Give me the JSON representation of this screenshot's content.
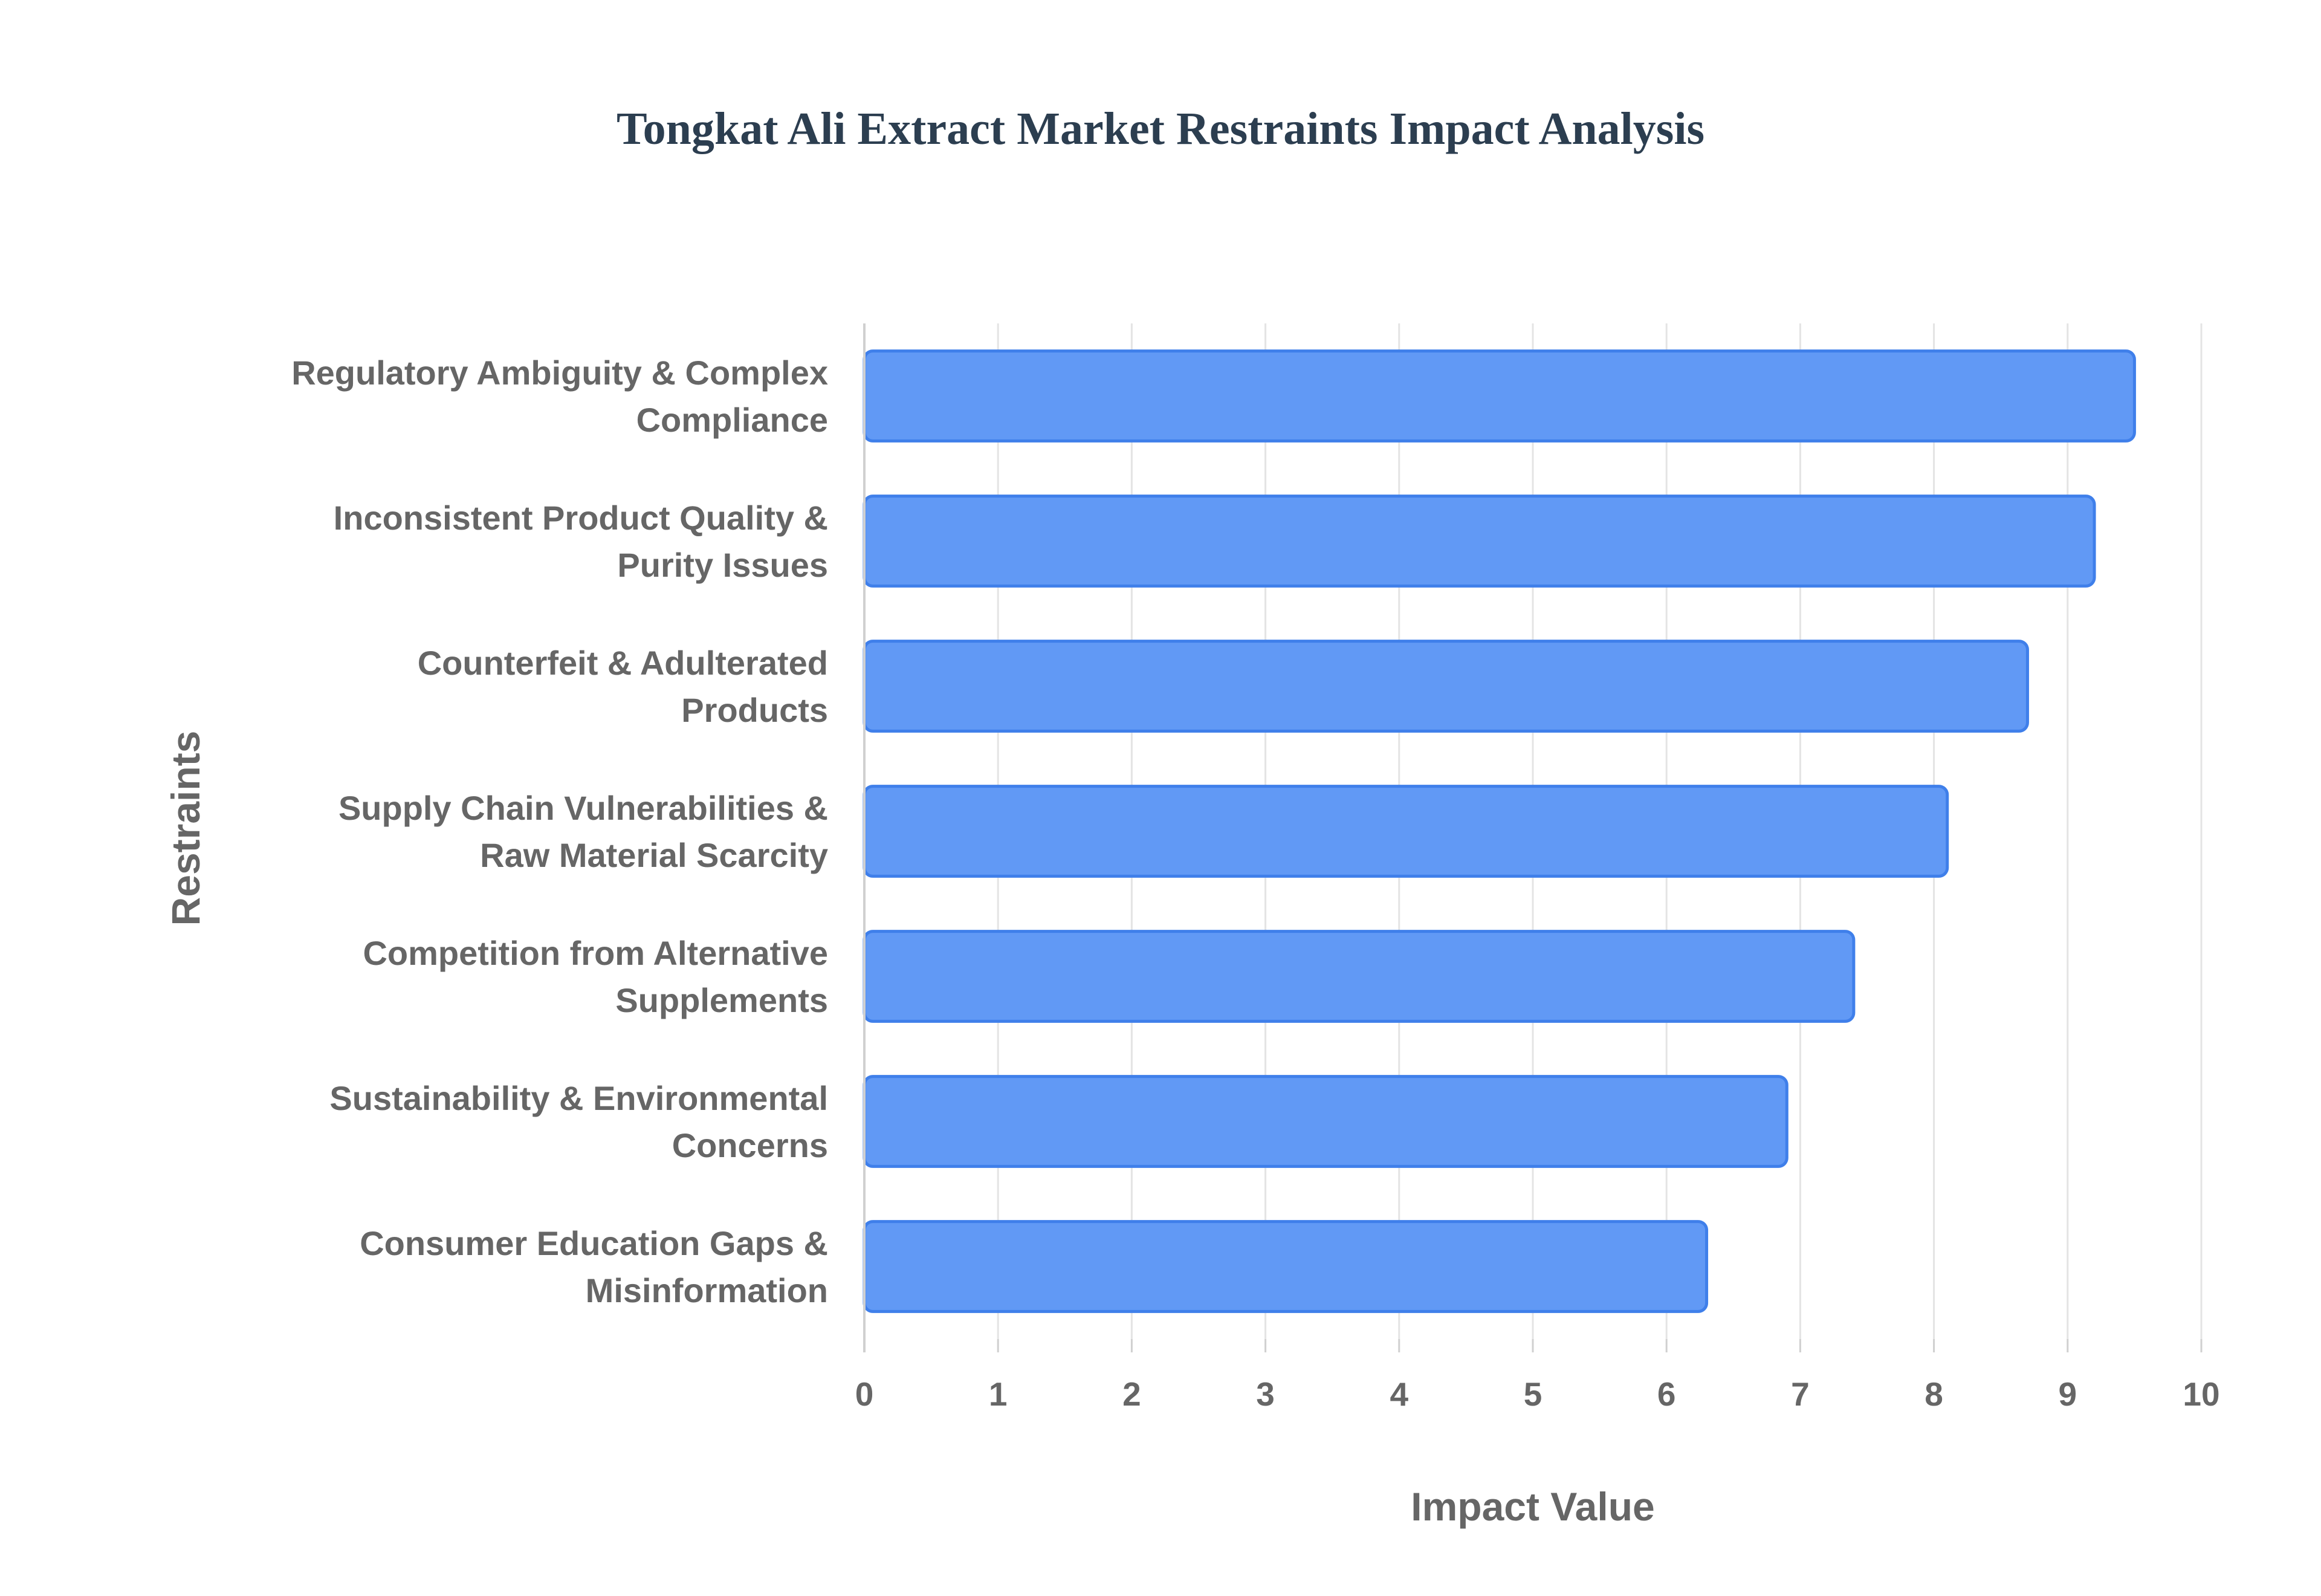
{
  "chart_data": {
    "type": "bar",
    "orientation": "horizontal",
    "title": "Tongkat Ali Extract Market Restraints Impact Analysis",
    "xlabel": "Impact Value",
    "ylabel": "Restraints",
    "xlim": [
      0,
      10
    ],
    "x_ticks": [
      "0",
      "1",
      "2",
      "3",
      "4",
      "5",
      "6",
      "7",
      "8",
      "9",
      "10"
    ],
    "grid": true,
    "legend": "none",
    "categories": [
      [
        "Regulatory Ambiguity & Complex",
        "Compliance"
      ],
      [
        "Inconsistent Product Quality &",
        "Purity Issues"
      ],
      [
        "Counterfeit & Adulterated",
        "Products"
      ],
      [
        "Supply Chain Vulnerabilities &",
        "Raw Material Scarcity"
      ],
      [
        "Competition from Alternative",
        "Supplements"
      ],
      [
        "Sustainability & Environmental",
        "Concerns"
      ],
      [
        "Consumer Education Gaps &",
        "Misinformation"
      ]
    ],
    "values": [
      9.5,
      9.2,
      8.7,
      8.1,
      7.4,
      6.9,
      6.3
    ],
    "colors": {
      "bar_fill": "#6199f5",
      "bar_stroke": "#3f7fea",
      "grid": "#e4e4e4",
      "axis": "#d0d0d0",
      "text": "#666666",
      "title": "#2c3e50"
    }
  }
}
